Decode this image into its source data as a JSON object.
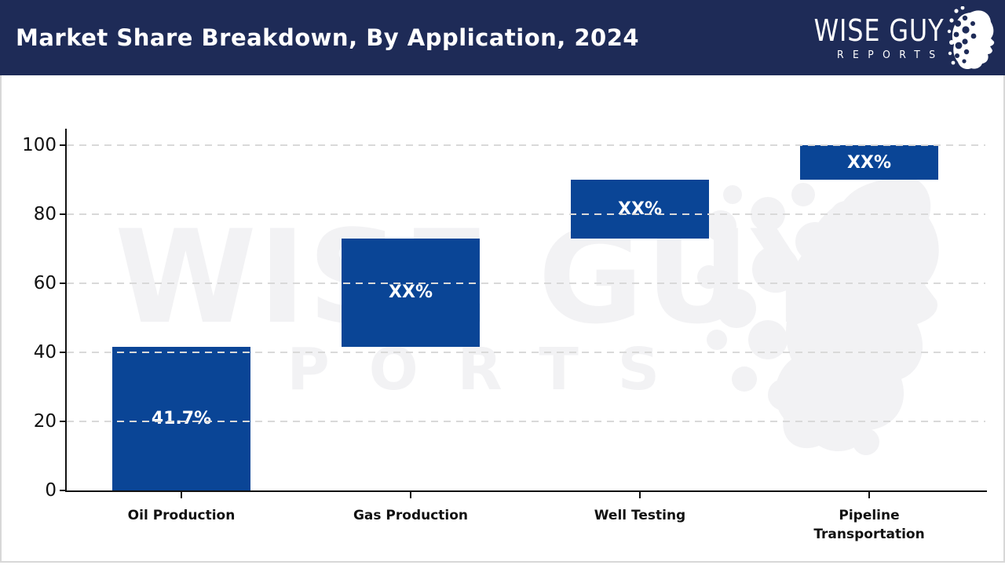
{
  "header": {
    "title": "Market Share Breakdown, By Application, 2024",
    "logo": {
      "line1": "WISE GUY",
      "line2": "REPORTS"
    }
  },
  "watermark": {
    "line1": "WISE GUY",
    "line2": "REPORTS"
  },
  "colors": {
    "header_bg": "#1e2b57",
    "bar_blue": "#0a4596",
    "bar_label_text": "#ffffff",
    "axis": "#111111",
    "gridline": "#d9d9d9",
    "watermark": "#f2f2f4",
    "title_text": "#ffffff"
  },
  "chart_data": {
    "type": "bar",
    "subtype": "waterfall-floating-bars",
    "title": "Market Share Breakdown, By Application, 2024",
    "categories": [
      "Oil Production",
      "Gas Production",
      "Well Testing",
      "Pipeline Transportation"
    ],
    "segments": [
      {
        "category": "Oil Production",
        "start": 0,
        "end": 41.7,
        "label": "41.7%"
      },
      {
        "category": "Gas Production",
        "start": 41.7,
        "end": 73,
        "label": "XX%"
      },
      {
        "category": "Well Testing",
        "start": 73,
        "end": 90,
        "label": "XX%"
      },
      {
        "category": "Pipeline Transportation",
        "start": 90,
        "end": 100,
        "label": "XX%"
      }
    ],
    "yticks": [
      0,
      20,
      40,
      60,
      80,
      100
    ],
    "ytick_labels": [
      "0",
      "20",
      "40",
      "60",
      "80",
      "100"
    ],
    "ylim": [
      0,
      100
    ],
    "xlabel": "",
    "ylabel": "",
    "grid": "horizontal-dashed",
    "legend": "none"
  }
}
